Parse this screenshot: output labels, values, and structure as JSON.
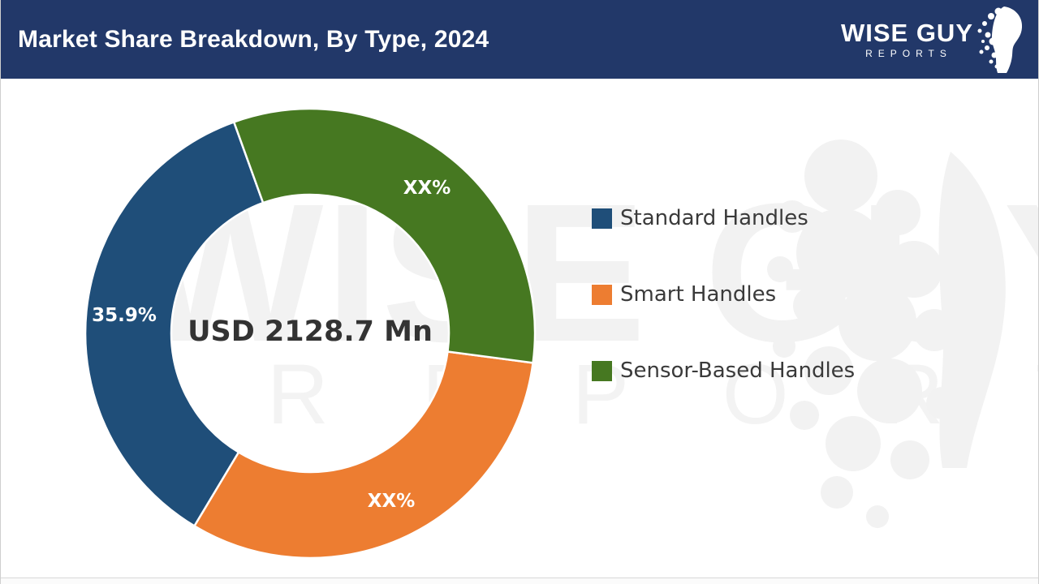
{
  "header": {
    "title": "Market Share Breakdown, By Type, 2024",
    "logo": {
      "line1": "WISE GUY",
      "line2": "REPORTS"
    }
  },
  "watermark": {
    "line1": "WISE GUY",
    "line2": "REPORTS"
  },
  "colors": {
    "header_bg": "#223869",
    "center_text": "#333333",
    "legend_text": "#3a3a3a",
    "slice_label_text": "#ffffff",
    "watermark": "#f2f2f2"
  },
  "chart_data": {
    "type": "pie",
    "subtype": "donut",
    "title": "Market Share Breakdown, By Type, 2024",
    "center_label": "USD 2128.7 Mn",
    "legend_position": "right",
    "donut_hole_ratio": 0.617,
    "start_angle_deg": 109.8,
    "direction": "counterclockwise",
    "segments": [
      {
        "name": "Standard Handles",
        "value": 35.9,
        "label": "35.9%",
        "color": "#1F4E79"
      },
      {
        "name": "Smart Handles",
        "value": 31.5,
        "label": "XX%",
        "color": "#ED7D31"
      },
      {
        "name": "Sensor-Based Handles",
        "value": 32.6,
        "label": "XX%",
        "color": "#467821"
      }
    ]
  }
}
